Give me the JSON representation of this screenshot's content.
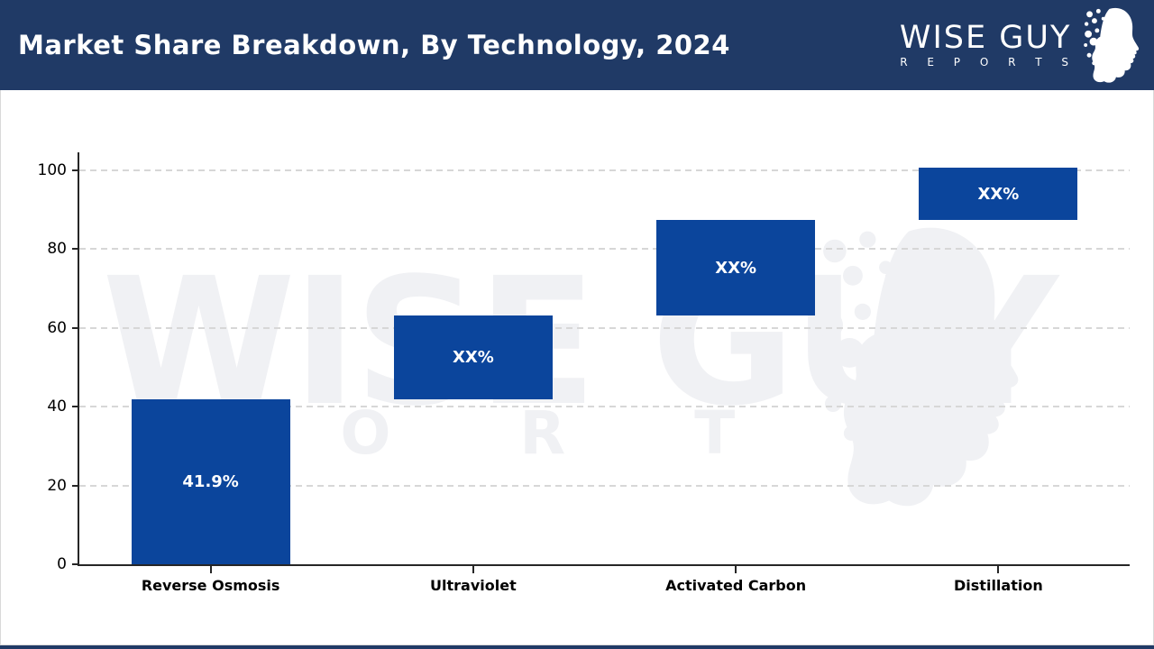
{
  "header": {
    "title": "Market Share Breakdown, By Technology, 2024",
    "logo_line1": "WISE GUY",
    "logo_line2": "R E P O R T S"
  },
  "watermark": {
    "line1": "WISE GUY",
    "line2": "P O R T S"
  },
  "colors": {
    "header_bg": "#203a66",
    "bar": "#0b459c",
    "bar_label": "#ffffff",
    "watermark": "#f0f1f4",
    "grid": "#d7d7d7",
    "axis": "#262626"
  },
  "chart_data": {
    "type": "bar",
    "subtype": "waterfall",
    "title": "Market Share Breakdown, By Technology, 2024",
    "categories": [
      "Reverse Osmosis",
      "Ultraviolet",
      "Activated Carbon",
      "Distillation"
    ],
    "segments": [
      {
        "category": "Reverse Osmosis",
        "start": 0,
        "end": 41.9,
        "label": "41.9%"
      },
      {
        "category": "Ultraviolet",
        "start": 41.9,
        "end": 63.1,
        "label": "XX%"
      },
      {
        "category": "Activated Carbon",
        "start": 63.1,
        "end": 87.3,
        "label": "XX%"
      },
      {
        "category": "Distillation",
        "start": 87.3,
        "end": 100.5,
        "label": "XX%"
      }
    ],
    "yticks": [
      0,
      20,
      40,
      60,
      80,
      100
    ],
    "ylim": [
      0,
      104
    ],
    "xlabel": "",
    "ylabel": "",
    "grid": "horizontal-dashed",
    "legend": "none"
  }
}
